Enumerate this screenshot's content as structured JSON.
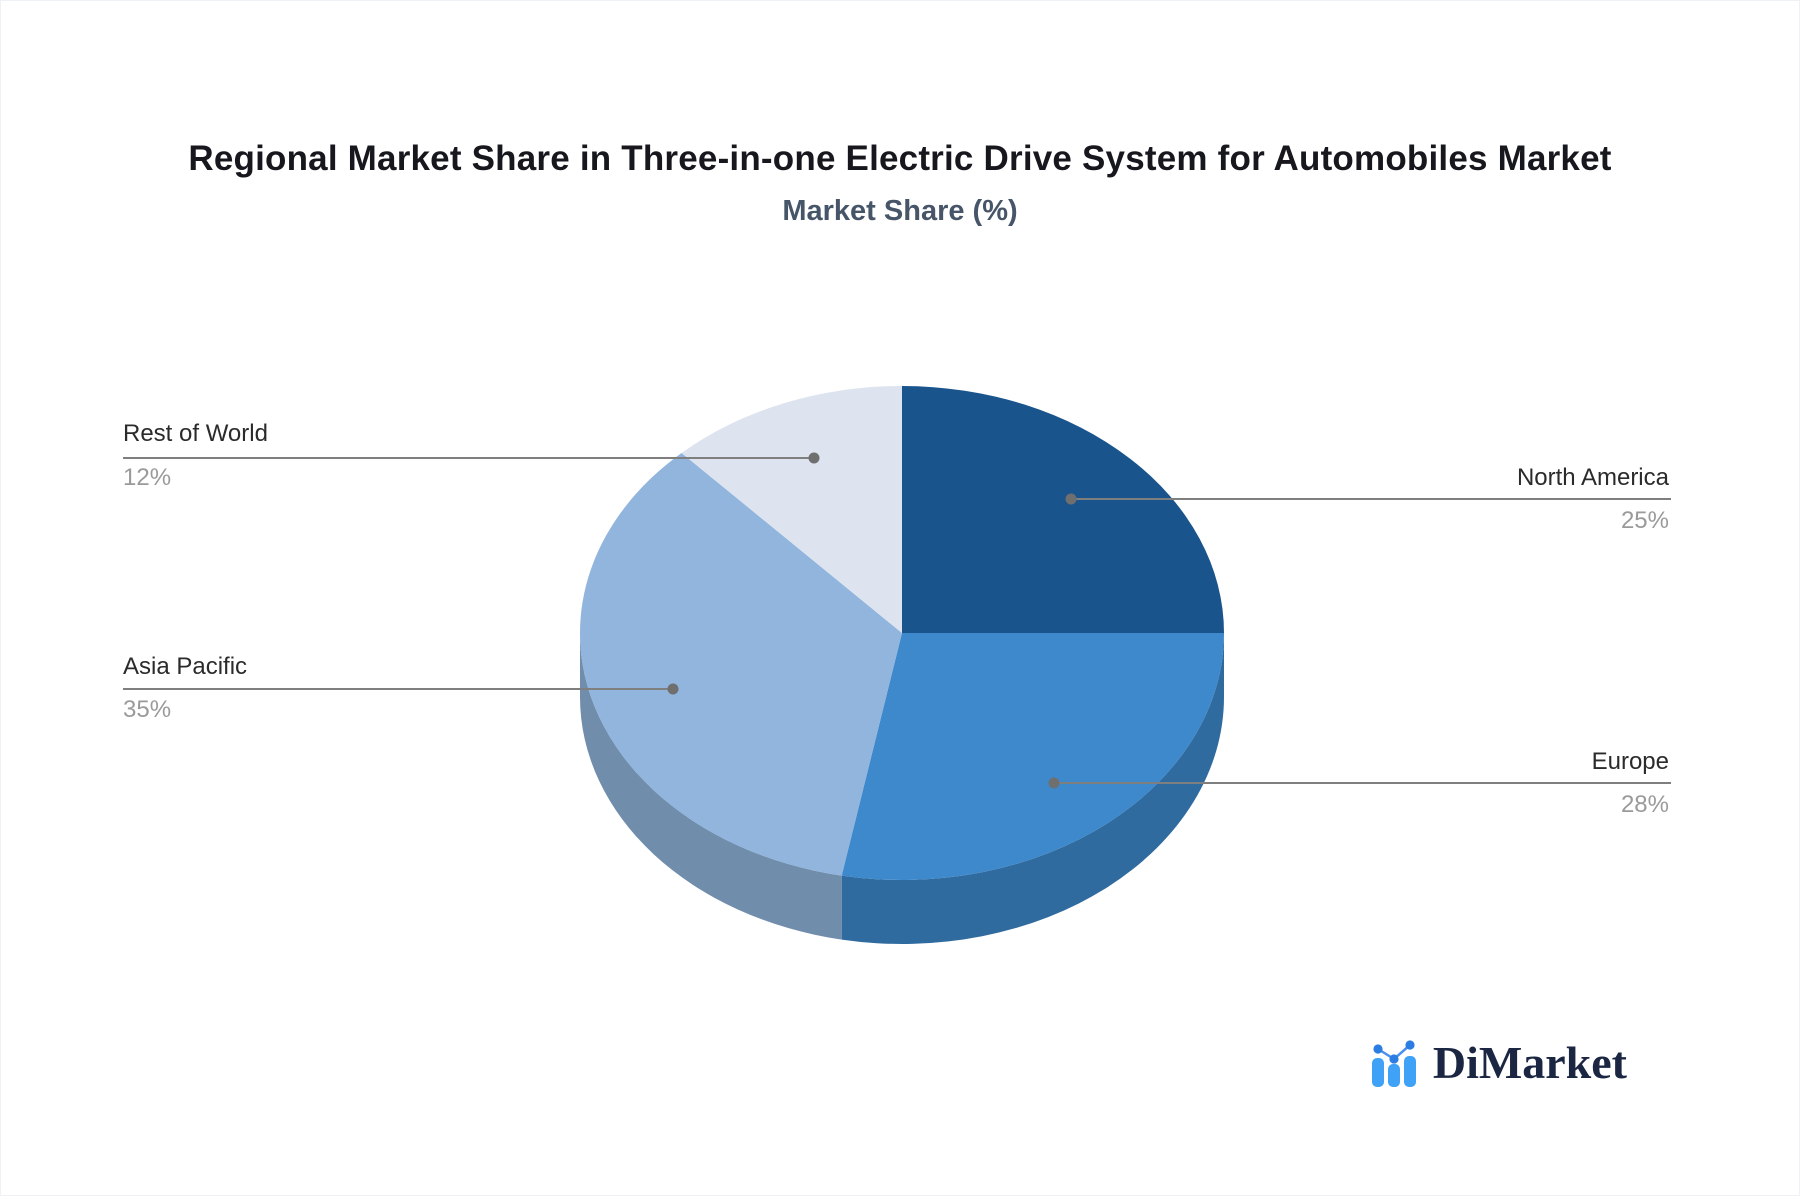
{
  "header": {
    "title": "Regional Market Share in Three-in-one Electric Drive System for Automobiles Market",
    "subtitle": "Market Share (%)"
  },
  "chart_data": {
    "type": "pie",
    "style": "3d",
    "title": "Regional Market Share in Three-in-one Electric Drive System for Automobiles Market",
    "subtitle": "Market Share (%)",
    "start_angle_deg": -90,
    "direction": "clockwise",
    "slices": [
      {
        "label": "North America",
        "value": 25,
        "value_label": "25%",
        "color": "#1a548c"
      },
      {
        "label": "Europe",
        "value": 28,
        "value_label": "28%",
        "color": "#3d89cc"
      },
      {
        "label": "Asia Pacific",
        "value": 35,
        "value_label": "35%",
        "color": "#91b5dc"
      },
      {
        "label": "Rest of World",
        "value": 12,
        "value_label": "12%",
        "color": "#dde4ef"
      }
    ],
    "label_text_color": "#2b2b2b",
    "value_text_color": "#9a9a9a",
    "leader_line_color": "#7f7f7f",
    "leader_dot_color": "#6f6f6f",
    "legend": "none",
    "background": "#ffffff"
  },
  "branding": {
    "logo_text": "DiMarket",
    "logo_icon": "bar-chart-trend-icon",
    "text_color": "#1b2642",
    "bar_color": "#3fa2f7",
    "accent_color": "#2b7de1"
  }
}
